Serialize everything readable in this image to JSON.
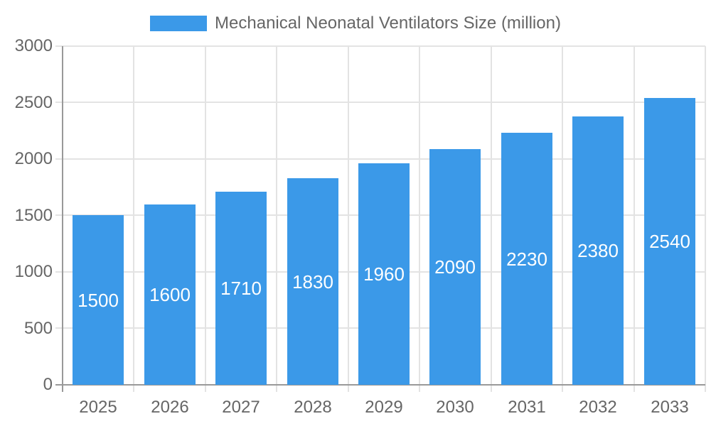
{
  "chart_data": {
    "type": "bar",
    "title": "",
    "legend_entries": [
      "Mechanical Neonatal Ventilators Size (million)"
    ],
    "legend_position": "top",
    "categories": [
      "2025",
      "2026",
      "2027",
      "2028",
      "2029",
      "2030",
      "2031",
      "2032",
      "2033"
    ],
    "series": [
      {
        "name": "Mechanical Neonatal Ventilators Size (million)",
        "values": [
          1500,
          1600,
          1710,
          1830,
          1960,
          2090,
          2230,
          2380,
          2540
        ]
      }
    ],
    "value_labels_shown": true,
    "xlabel": "",
    "ylabel": "",
    "ylim": [
      0,
      3000
    ],
    "y_ticks": [
      0,
      500,
      1000,
      1500,
      2000,
      2500,
      3000
    ],
    "grid": true
  },
  "colors": {
    "bar": "#3B99E8",
    "grid_line": "#E3E3E3",
    "axis_line": "#999999",
    "tick_text": "#666666",
    "value_label_text": "#FFFFFF",
    "background": "#FFFFFF"
  }
}
